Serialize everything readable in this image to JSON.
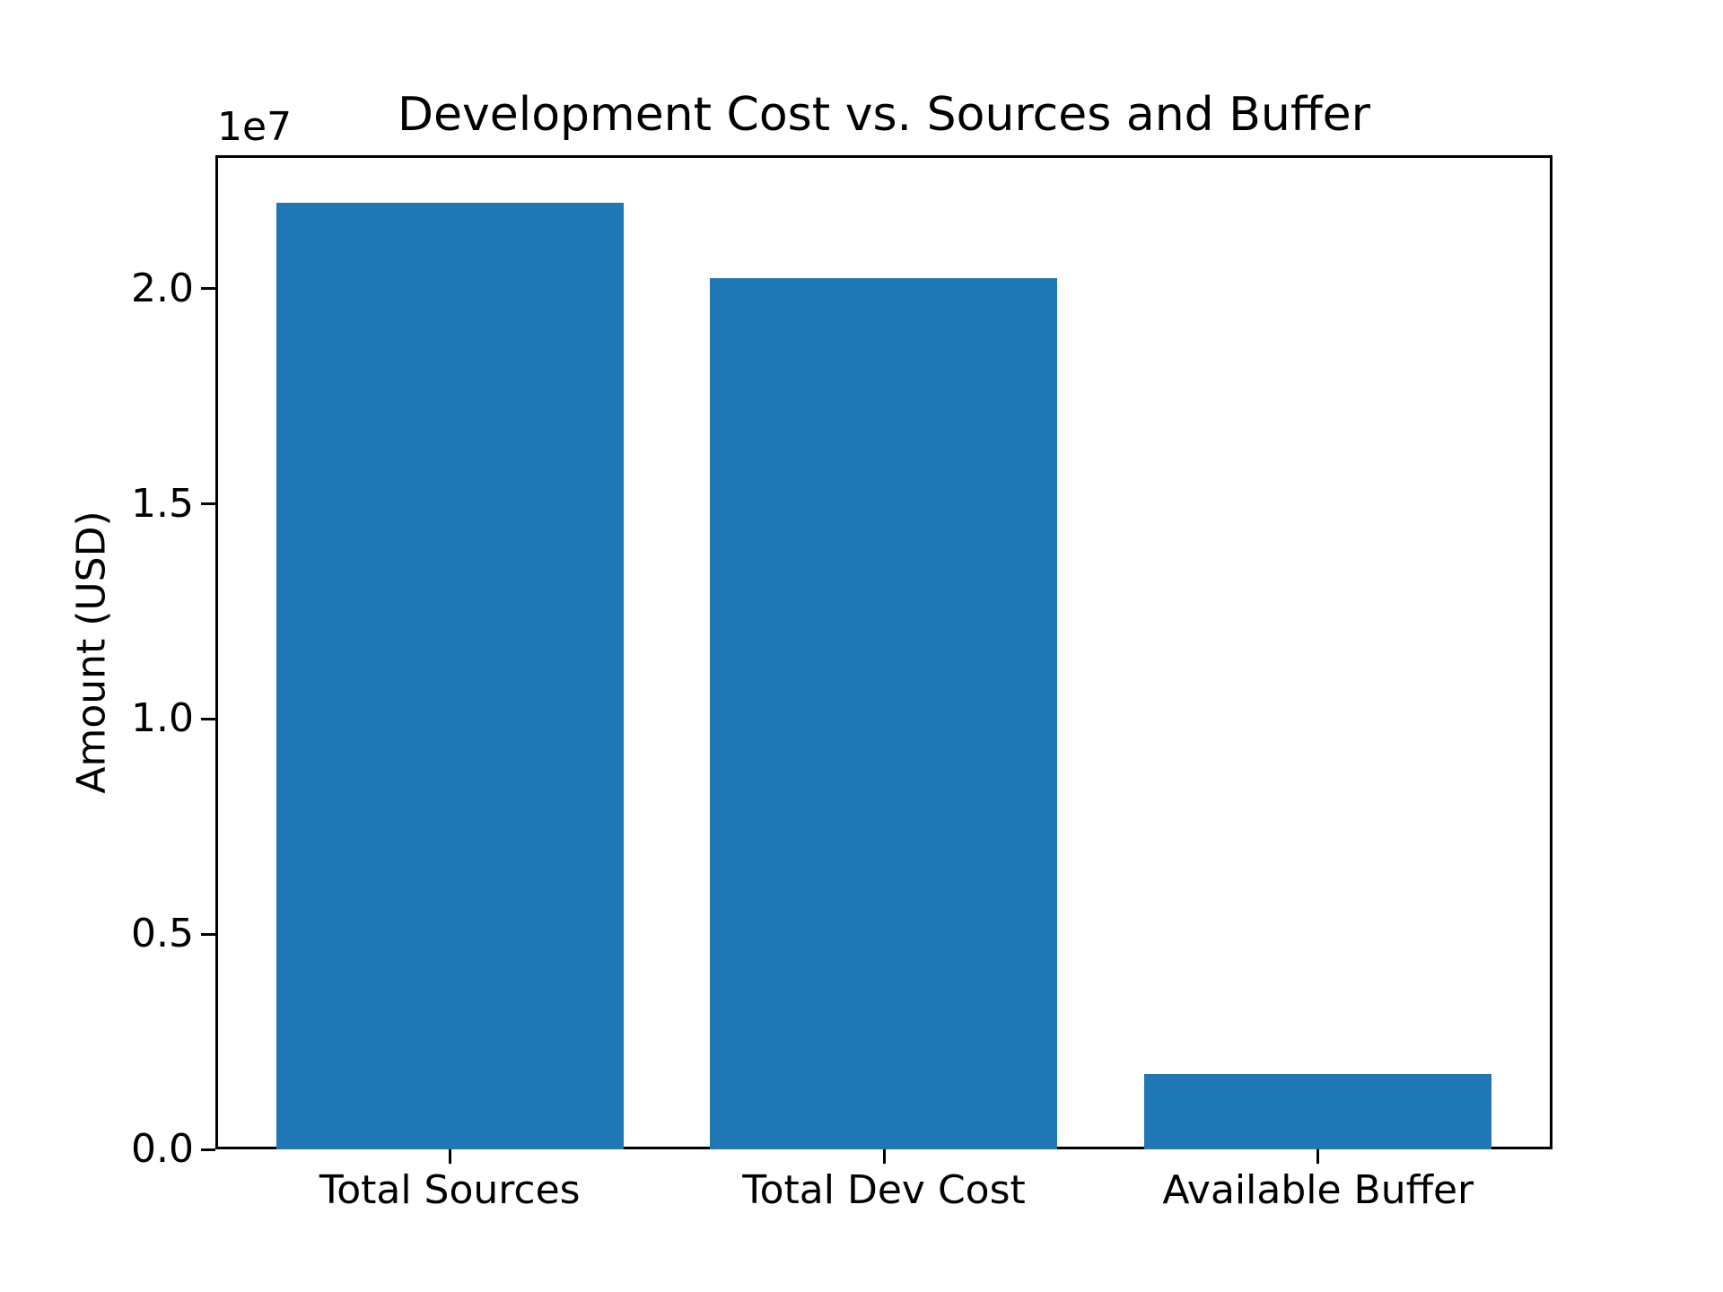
{
  "chart_data": {
    "type": "bar",
    "title": "Development Cost vs. Sources and Buffer",
    "categories": [
      "Total Sources",
      "Total Dev Cost",
      "Available Buffer"
    ],
    "values": [
      22000000,
      20250000,
      1750000
    ],
    "xlabel": "",
    "ylabel": "Amount (USD)",
    "y_offset_text": "1e7",
    "ylim": [
      0,
      23100000
    ],
    "yticks": [
      0,
      5000000,
      10000000,
      15000000,
      20000000
    ],
    "ytick_labels": [
      "0.0",
      "0.5",
      "1.0",
      "1.5",
      "2.0"
    ],
    "bar_color": "#1f77b4",
    "grid": false,
    "legend_position": "none",
    "bar_width_fraction": 0.8
  }
}
